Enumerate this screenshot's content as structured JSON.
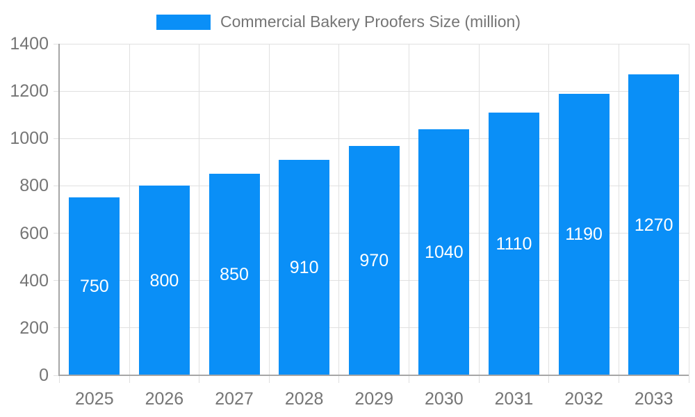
{
  "legend": {
    "label": "Commercial Bakery Proofers Size (million)"
  },
  "chart_data": {
    "type": "bar",
    "title": "Commercial Bakery Proofers Size (million)",
    "categories": [
      "2025",
      "2026",
      "2027",
      "2028",
      "2029",
      "2030",
      "2031",
      "2032",
      "2033"
    ],
    "values": [
      750,
      800,
      850,
      910,
      970,
      1040,
      1110,
      1190,
      1270
    ],
    "series": [
      {
        "name": "Commercial Bakery Proofers Size (million)",
        "values": [
          750,
          800,
          850,
          910,
          970,
          1040,
          1110,
          1190,
          1270
        ]
      }
    ],
    "xlabel": "",
    "ylabel": "",
    "ylim": [
      0,
      1400
    ],
    "yticks": [
      0,
      200,
      400,
      600,
      800,
      1000,
      1200,
      1400
    ],
    "grid": true,
    "legend_position": "top-center",
    "value_label_position": "inside-center",
    "colors": {
      "bar": "#0a8ff7",
      "grid": "#e0e0e0",
      "axis_line": "#a6a6a6",
      "text": "#757575",
      "value_label": "#ffffff",
      "background": "#ffffff"
    }
  }
}
